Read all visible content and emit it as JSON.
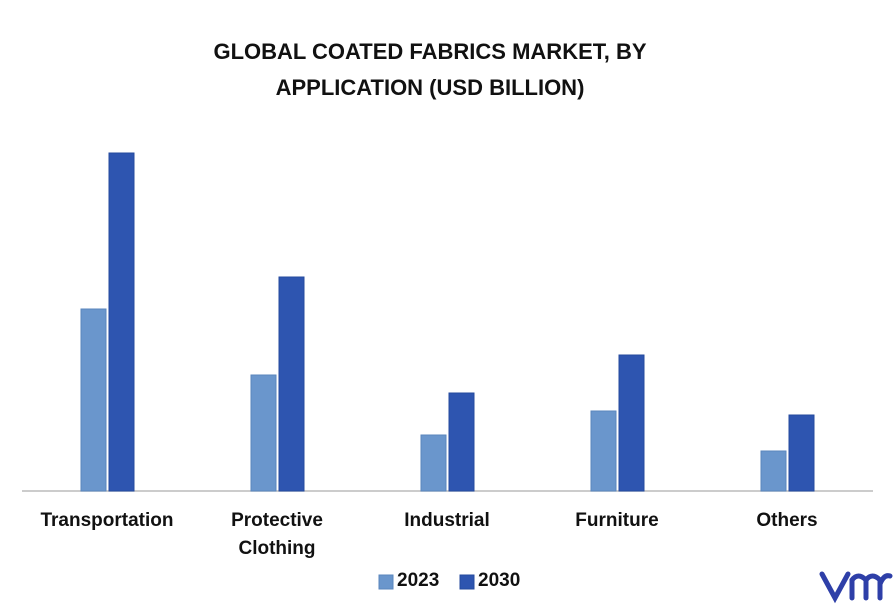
{
  "chart_data": {
    "type": "bar",
    "title": "GLOBAL COATED FABRICS MARKET, BY APPLICATION (USD BILLION)",
    "categories": [
      "Transportation",
      "Protective Clothing",
      "Industrial",
      "Furniture",
      "Others"
    ],
    "series": [
      {
        "name": "2023",
        "color": "#6a96cc",
        "values": [
          9.1,
          5.8,
          2.8,
          4.0,
          2.0
        ]
      },
      {
        "name": "2030",
        "color": "#2e55b0",
        "values": [
          16.9,
          10.7,
          4.9,
          6.8,
          3.8
        ]
      }
    ]
  }
}
